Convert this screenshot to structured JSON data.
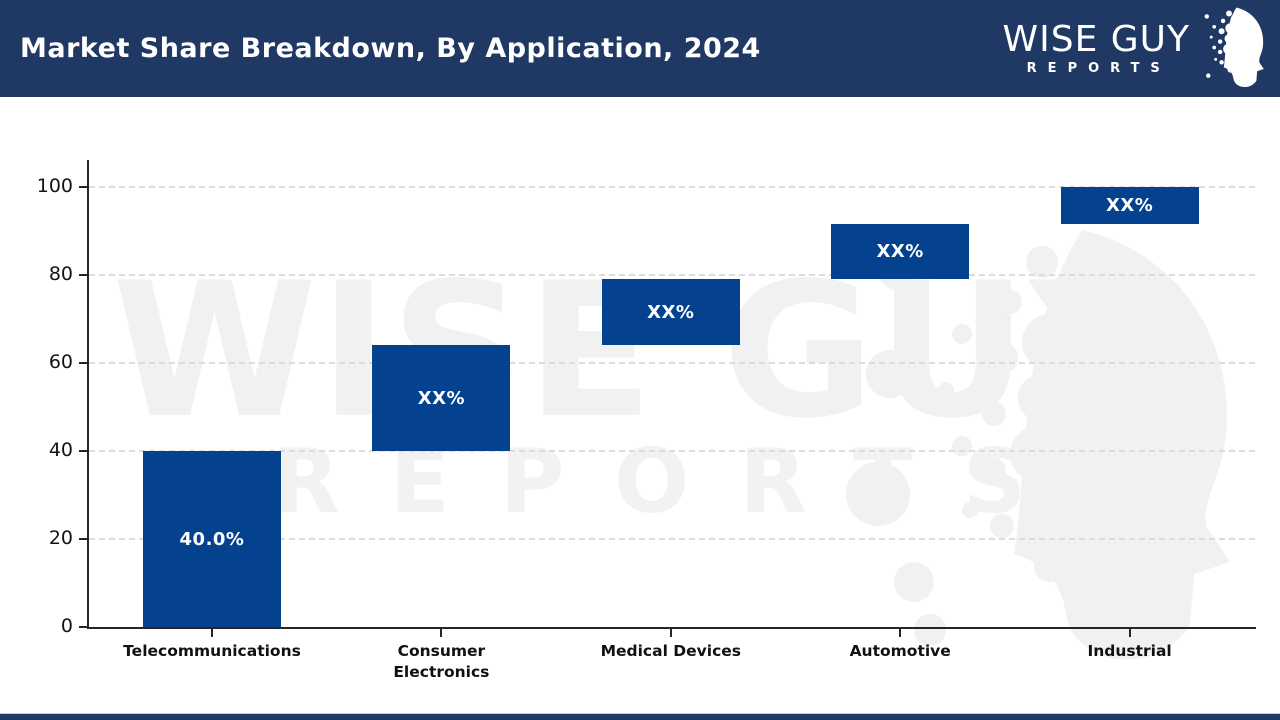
{
  "header": {
    "title": "Market Share Breakdown, By Application, 2024",
    "logo": {
      "brand_line1": "WISE GUY",
      "brand_line2": "REPORTS"
    }
  },
  "watermark": {
    "line1": "WISE GUY",
    "line2": "REPORTS"
  },
  "chart_data": {
    "type": "bar",
    "subtype": "waterfall",
    "title": "Market Share Breakdown, By Application, 2024",
    "categories": [
      "Telecommunications",
      "Consumer Electronics",
      "Medical Devices",
      "Automotive",
      "Industrial"
    ],
    "segments": [
      {
        "category": "Telecommunications",
        "start": 0,
        "end": 40,
        "label": "40.0%"
      },
      {
        "category": "Consumer Electronics",
        "start": 40,
        "end": 64,
        "label": "XX%"
      },
      {
        "category": "Medical Devices",
        "start": 64,
        "end": 79,
        "label": "XX%"
      },
      {
        "category": "Automotive",
        "start": 79,
        "end": 91.5,
        "label": "XX%"
      },
      {
        "category": "Industrial",
        "start": 91.5,
        "end": 100,
        "label": "XX%"
      }
    ],
    "xlabel": "",
    "ylabel": "",
    "ylim": [
      0,
      105
    ],
    "yticks": [
      0,
      20,
      40,
      60,
      80,
      100
    ],
    "grid": "horizontal-dashed",
    "legend": "none",
    "bar_color": "#04418f",
    "bar_label_color": "#ffffff"
  },
  "colors": {
    "header_bg": "#1f3864",
    "bar": "#04418f",
    "grid": "#dcdcdc",
    "axis": "#262626",
    "watermark": "#f1f1f1",
    "footer_bar": "#1f3864",
    "page_bg": "#ffffff"
  }
}
